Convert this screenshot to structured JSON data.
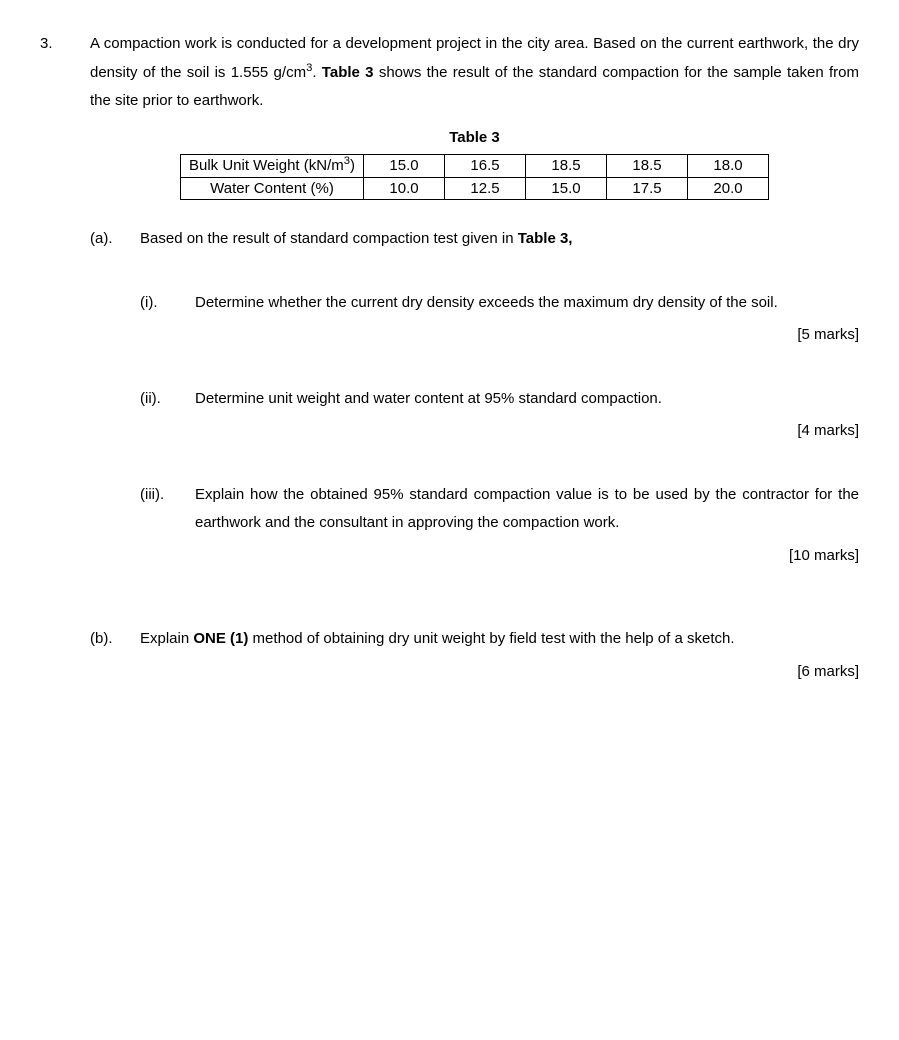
{
  "question_number": "3.",
  "intro_html": "A compaction work is conducted for a development project in the city area. Based on the current earthwork, the dry density of the soil is 1.555 g/cm<sup>3</sup>. <b>Table 3</b> shows the result of the standard compaction for the sample taken from the site prior to earthwork.",
  "table": {
    "caption": "Table 3",
    "rows": [
      {
        "label_html": "Bulk Unit Weight (kN/m<sup>3</sup>)",
        "cells": [
          "15.0",
          "16.5",
          "18.5",
          "18.5",
          "18.0"
        ]
      },
      {
        "label_html": "Water Content (%)",
        "cells": [
          "10.0",
          "12.5",
          "15.0",
          "17.5",
          "20.0"
        ]
      }
    ]
  },
  "parts": [
    {
      "label": "(a).",
      "text_html": "Based on the result of standard compaction test given in <b>Table 3,</b>",
      "subparts": [
        {
          "label": "(i).",
          "text": "Determine whether the current dry density exceeds the maximum dry density of the soil.",
          "marks": "[5 marks]"
        },
        {
          "label": "(ii).",
          "text": "Determine unit weight and water content at 95% standard compaction.",
          "marks": "[4 marks]"
        },
        {
          "label": "(iii).",
          "text": "Explain how the obtained 95% standard compaction value is to be used by the contractor for the earthwork and the consultant in approving the compaction work.",
          "marks": "[10 marks]"
        }
      ]
    },
    {
      "label": "(b).",
      "text_html": "Explain <b>ONE (1)</b> method of obtaining dry unit weight by field test with the help of a sketch.",
      "marks": "[6 marks]"
    }
  ]
}
